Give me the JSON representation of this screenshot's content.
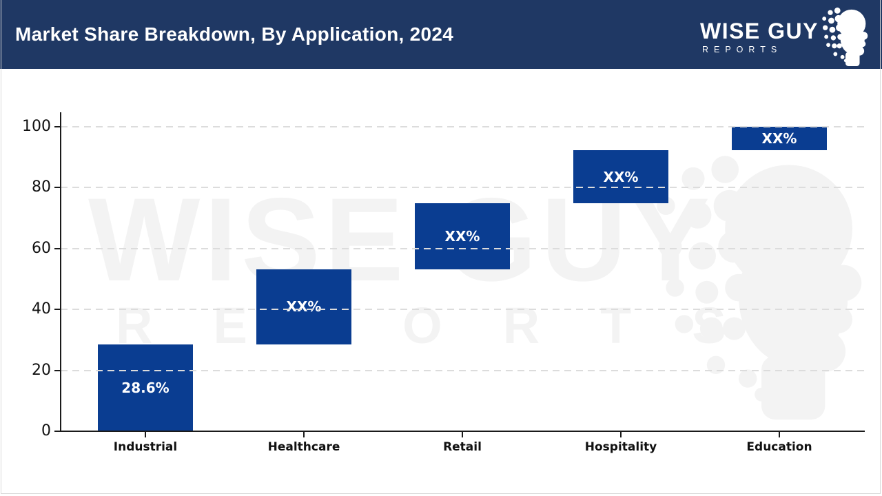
{
  "header": {
    "title": "Market Share Breakdown, By Application, 2024",
    "logo": {
      "line1": "WISE GUY",
      "line2": "REPORTS"
    }
  },
  "watermark": {
    "line1": "WISE GUY",
    "line2": "REPORTS"
  },
  "colors": {
    "header_navy": "#1f3864",
    "bar_blue": "#0a3d91",
    "bar_label": "#ffffff",
    "watermark_gray": "#f3f3f3",
    "gridline_gray": "#dcdcdc",
    "axis_black": "#1a1a1a"
  },
  "chart_data": {
    "type": "bar",
    "subtype": "waterfall-floating-bars",
    "title": "Market Share Breakdown, By Application, 2024",
    "categories": [
      "Industrial",
      "Healthcare",
      "Retail",
      "Hospitality",
      "Education"
    ],
    "segments": [
      {
        "category": "Industrial",
        "start": 0,
        "end": 28.6,
        "label": "28.6%"
      },
      {
        "category": "Healthcare",
        "start": 28.6,
        "end": 53.2,
        "label": "XX%"
      },
      {
        "category": "Retail",
        "start": 53.2,
        "end": 74.8,
        "label": "XX%"
      },
      {
        "category": "Hospitality",
        "start": 74.8,
        "end": 92.3,
        "label": "XX%"
      },
      {
        "category": "Education",
        "start": 92.3,
        "end": 100,
        "label": "XX%"
      }
    ],
    "values": [
      28.6,
      24.6,
      21.6,
      17.5,
      7.7
    ],
    "yticks": [
      0,
      20,
      40,
      60,
      80,
      100
    ],
    "ylim": [
      0,
      105
    ],
    "xlabel": "",
    "ylabel": "",
    "grid": "horizontal-dashed-over-bars",
    "legend": "none"
  }
}
